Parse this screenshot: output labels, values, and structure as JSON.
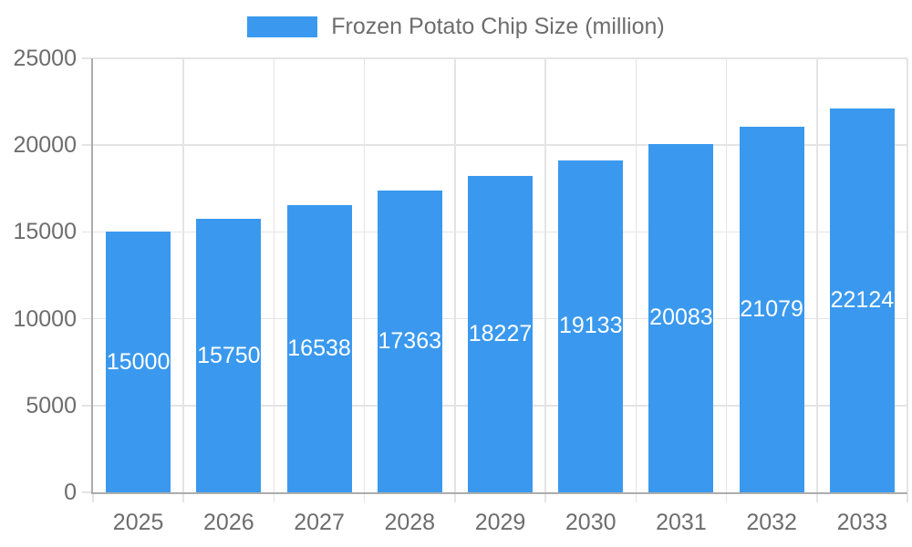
{
  "chart_data": {
    "type": "bar",
    "title": "Frozen Potato Chip Size (million)",
    "legend_label": "Frozen Potato Chip Size (million)",
    "legend_position": "top",
    "categories": [
      "2025",
      "2026",
      "2027",
      "2028",
      "2029",
      "2030",
      "2031",
      "2032",
      "2033"
    ],
    "values": [
      15000,
      15750,
      16538,
      17363,
      18227,
      19133,
      20083,
      21079,
      22124
    ],
    "value_labels": [
      "15000",
      "15750",
      "16538",
      "17363",
      "18227",
      "19133",
      "20083",
      "21079",
      "22124"
    ],
    "xlabel": "",
    "ylabel": "",
    "ylim": [
      0,
      25000
    ],
    "y_ticks": [
      0,
      5000,
      10000,
      15000,
      20000,
      25000
    ],
    "y_tick_labels": [
      "0",
      "5000",
      "10000",
      "15000",
      "20000",
      "25000"
    ],
    "grid": true,
    "value_labels_inside_bars": true,
    "colors": {
      "bar": "#3a99ee",
      "grid": "#e4e4e4",
      "axis": "#acacac",
      "tick_text": "#6d6d6d",
      "value_text": "#ffffff",
      "background": "#ffffff"
    }
  }
}
